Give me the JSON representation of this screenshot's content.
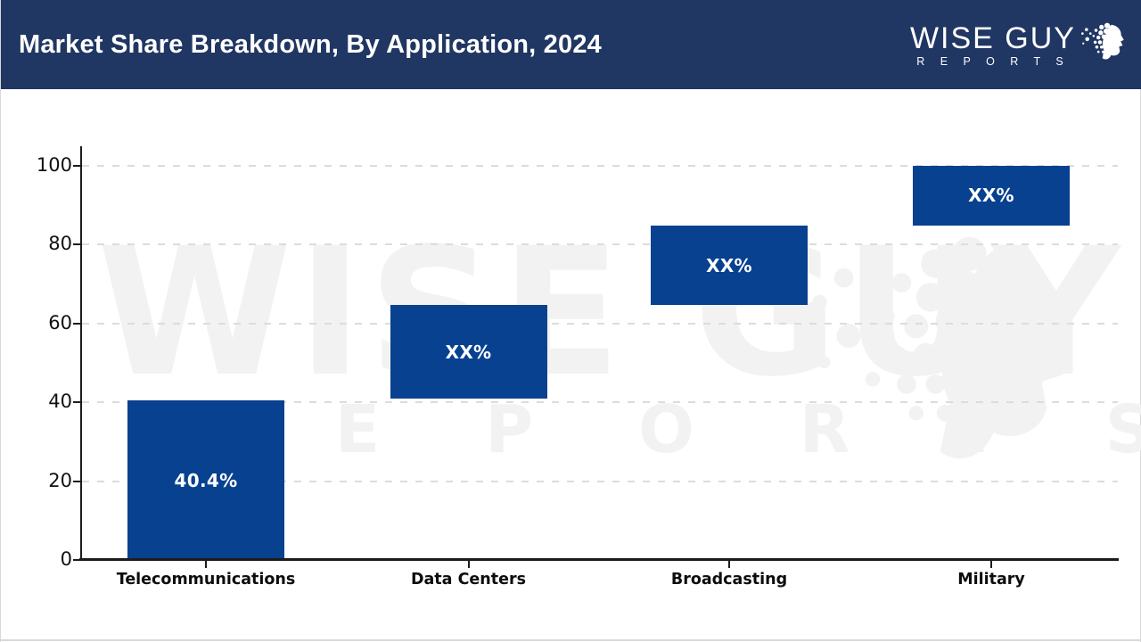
{
  "header": {
    "title": "Market Share Breakdown, By Application, 2024",
    "brand": {
      "name": "WISE GUY",
      "sub": "R E P O R T S"
    },
    "bg_color": "#203663"
  },
  "watermark": {
    "line1": "WISE GUY",
    "line2": "R E P O R T S"
  },
  "chart_data": {
    "type": "bar",
    "subtype": "floating-waterfall",
    "title": "Market Share Breakdown, By Application, 2024",
    "categories": [
      "Telecommunications",
      "Data Centers",
      "Broadcasting",
      "Military"
    ],
    "segments": [
      {
        "category": "Telecommunications",
        "start": 0,
        "end": 40.4,
        "label": "40.4%"
      },
      {
        "category": "Data Centers",
        "start": 40.9,
        "end": 64.6,
        "label": "XX%"
      },
      {
        "category": "Broadcasting",
        "start": 64.7,
        "end": 84.8,
        "label": "XX%"
      },
      {
        "category": "Military",
        "start": 84.9,
        "end": 100,
        "label": "XX%"
      }
    ],
    "yticks": [
      0,
      20,
      40,
      60,
      80,
      100
    ],
    "ylim": [
      0,
      105
    ],
    "xlabel": "",
    "ylabel": "",
    "grid": "dashed-horizontal",
    "legend": "none",
    "bar_color": "#07418f",
    "bar_label_color": "#ffffff",
    "axis_color": "#1c1c1c",
    "grid_color": "#dcdcdc"
  }
}
